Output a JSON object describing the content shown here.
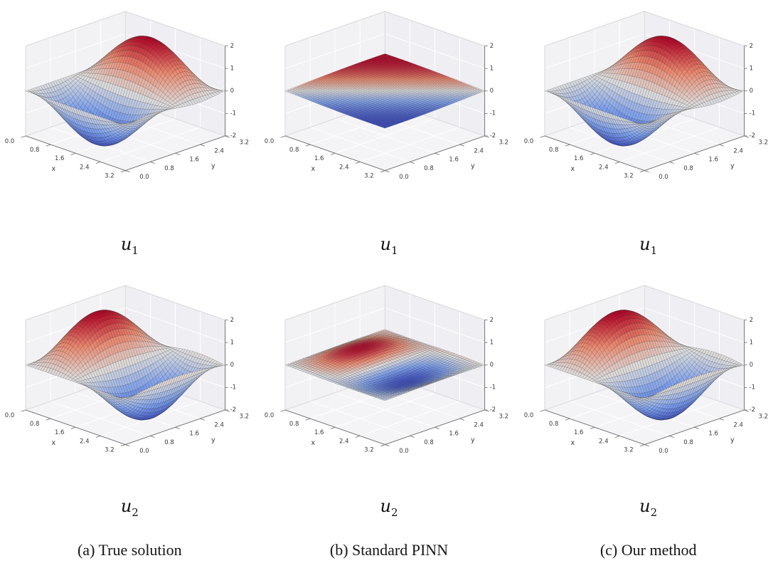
{
  "figure": {
    "background": "#ffffff",
    "captions": [
      "(a) True solution",
      "(b) Standard PINN",
      "(c) Our method"
    ]
  },
  "chart_data": [
    {
      "type": "surface3d",
      "group": "True solution",
      "title_base": "u",
      "title_sub": "1",
      "xlabel": "x",
      "ylabel": "y",
      "x_range": [
        0,
        3.2
      ],
      "y_range": [
        0,
        3.2
      ],
      "z_range": [
        -2,
        2
      ],
      "x_ticks": [
        "0.0",
        "0.8",
        "1.6",
        "2.4",
        "3.2"
      ],
      "y_ticks": [
        "0.0",
        "0.8",
        "1.6",
        "2.4",
        "3.2"
      ],
      "z_ticks": [
        "-2",
        "-1",
        "0",
        "1",
        "2"
      ],
      "surface_expr": "-2*sin(x)*sin(2*y)",
      "grid_n": 40,
      "colormap": "coolwarm"
    },
    {
      "type": "surface3d",
      "group": "Standard PINN",
      "title_base": "u",
      "title_sub": "1",
      "xlabel": "x",
      "ylabel": "y",
      "x_range": [
        0,
        3.2
      ],
      "y_range": [
        0,
        3.2
      ],
      "z_range": [
        -2,
        2
      ],
      "x_ticks": [
        "0.0",
        "0.8",
        "1.6",
        "2.4",
        "3.2"
      ],
      "y_ticks": [
        "0.0",
        "0.8",
        "1.6",
        "2.4",
        "3.2"
      ],
      "z_ticks": [
        "-2",
        "-1",
        "0",
        "1",
        "2"
      ],
      "surface_expr": "0.12*sin(0.55*(y-x))",
      "grid_n": 40,
      "colormap": "coolwarm"
    },
    {
      "type": "surface3d",
      "group": "Our method",
      "title_base": "u",
      "title_sub": "1",
      "xlabel": "x",
      "ylabel": "y",
      "x_range": [
        0,
        3.2
      ],
      "y_range": [
        0,
        3.2
      ],
      "z_range": [
        -2,
        2
      ],
      "x_ticks": [
        "0.0",
        "0.8",
        "1.6",
        "2.4",
        "3.2"
      ],
      "y_ticks": [
        "0.0",
        "0.8",
        "1.6",
        "2.4",
        "3.2"
      ],
      "z_ticks": [
        "-2",
        "-1",
        "0",
        "1",
        "2"
      ],
      "surface_expr": "-2*sin(x)*sin(2*y)",
      "grid_n": 40,
      "colormap": "coolwarm"
    },
    {
      "type": "surface3d",
      "group": "True solution",
      "title_base": "u",
      "title_sub": "2",
      "xlabel": "x",
      "ylabel": "y",
      "x_range": [
        0,
        3.2
      ],
      "y_range": [
        0,
        3.2
      ],
      "z_range": [
        -2,
        2
      ],
      "x_ticks": [
        "0.0",
        "0.8",
        "1.6",
        "2.4",
        "3.2"
      ],
      "y_ticks": [
        "0.0",
        "0.8",
        "1.6",
        "2.4",
        "3.2"
      ],
      "z_ticks": [
        "-2",
        "-1",
        "0",
        "1",
        "2"
      ],
      "surface_expr": "2*sin(2*x)*sin(y)",
      "grid_n": 40,
      "colormap": "coolwarm"
    },
    {
      "type": "surface3d",
      "group": "Standard PINN",
      "title_base": "u",
      "title_sub": "2",
      "xlabel": "x",
      "ylabel": "y",
      "x_range": [
        0,
        3.2
      ],
      "y_range": [
        0,
        3.2
      ],
      "z_range": [
        -2,
        2
      ],
      "x_ticks": [
        "0.0",
        "0.8",
        "1.6",
        "2.4",
        "3.2"
      ],
      "y_ticks": [
        "0.0",
        "0.8",
        "1.6",
        "2.4",
        "3.2"
      ],
      "z_ticks": [
        "-2",
        "-1",
        "0",
        "1",
        "2"
      ],
      "surface_expr": "0.35*sin(2*x)*sin(y)+0.05*sin(0.6*(y-x))",
      "grid_n": 40,
      "colormap": "coolwarm"
    },
    {
      "type": "surface3d",
      "group": "Our method",
      "title_base": "u",
      "title_sub": "2",
      "xlabel": "x",
      "ylabel": "y",
      "x_range": [
        0,
        3.2
      ],
      "y_range": [
        0,
        3.2
      ],
      "z_range": [
        -2,
        2
      ],
      "x_ticks": [
        "0.0",
        "0.8",
        "1.6",
        "2.4",
        "3.2"
      ],
      "y_ticks": [
        "0.0",
        "0.8",
        "1.6",
        "2.4",
        "3.2"
      ],
      "z_ticks": [
        "-2",
        "-1",
        "0",
        "1",
        "2"
      ],
      "surface_expr": "2*sin(2*x)*sin(y)",
      "grid_n": 40,
      "colormap": "coolwarm"
    }
  ],
  "style": {
    "pane_wall": "#f2f2f5",
    "pane_wall2": "#efeff3",
    "pane_floor": "#f4f4f7",
    "grid_color": "#ffffff",
    "pane_edge": "#d6d6dc",
    "mesh_color": "rgba(45,45,45,0.45)",
    "axis_color": "#6b6b6b",
    "tick_color": "#3a3a3a",
    "colormap_stops": [
      {
        "t": 0,
        "c": [
          59,
          76,
          192
        ]
      },
      {
        "t": 0.25,
        "c": [
          124,
          159,
          235
        ]
      },
      {
        "t": 0.5,
        "c": [
          221,
          221,
          221
        ]
      },
      {
        "t": 0.75,
        "c": [
          234,
          136,
          110
        ]
      },
      {
        "t": 1,
        "c": [
          180,
          4,
          38
        ]
      }
    ]
  }
}
